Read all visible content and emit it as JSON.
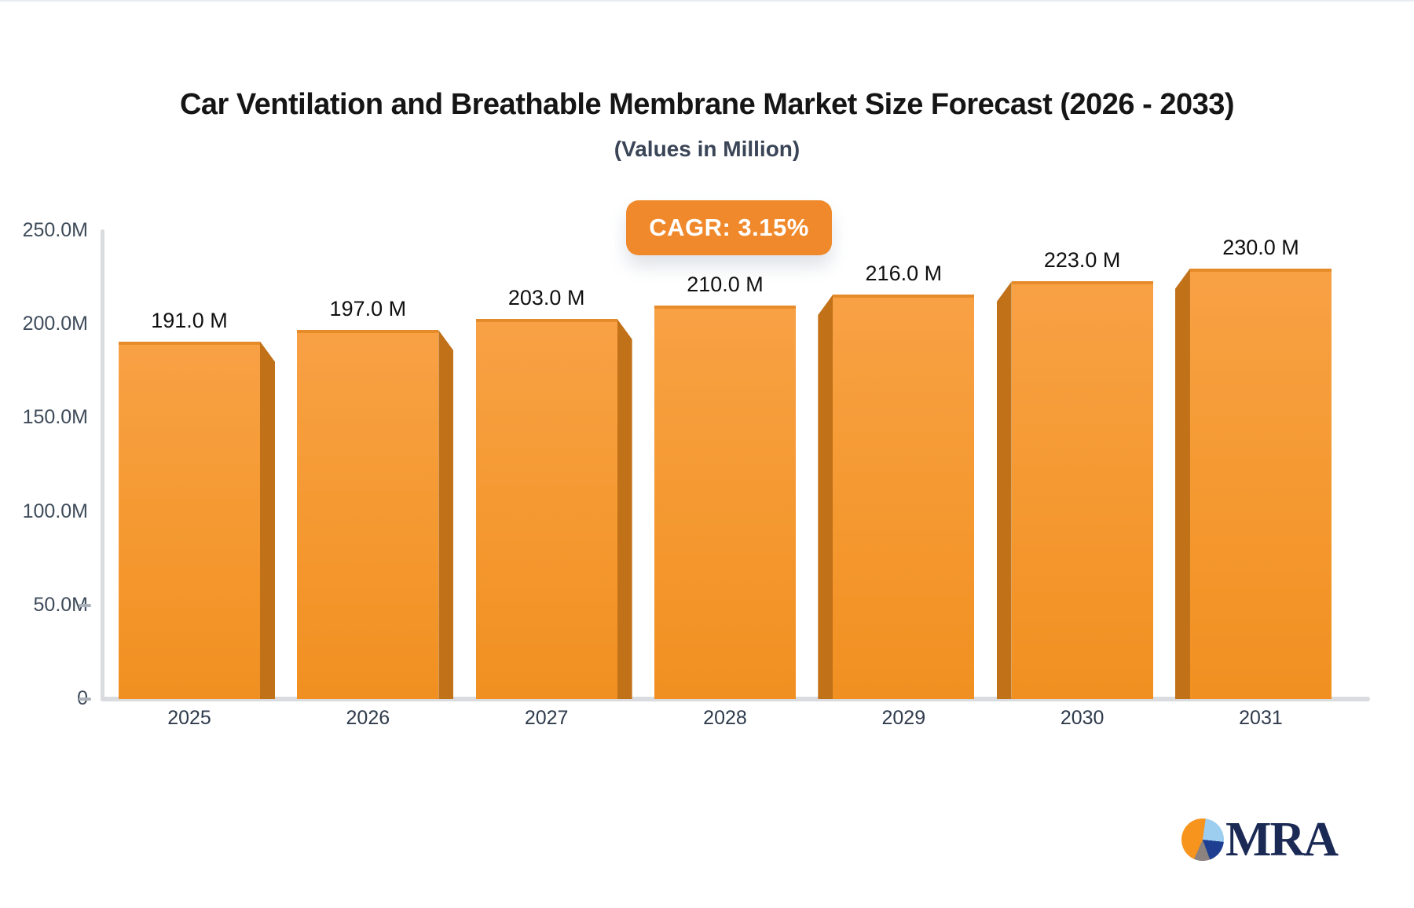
{
  "header": {
    "title": "Car Ventilation and Breathable Membrane Market Size Forecast (2026 - 2033)",
    "subtitle": "(Values in Million)"
  },
  "badge": {
    "label": "CAGR: 3.15%"
  },
  "chart_data": {
    "type": "bar",
    "title": "Car Ventilation and Breathable Membrane Market Size Forecast (2026 - 2033)",
    "subtitle": "(Values in Million)",
    "cagr_percent": 3.15,
    "categories": [
      "2025",
      "2026",
      "2027",
      "2028",
      "2029",
      "2030",
      "2031"
    ],
    "values": [
      191,
      197,
      203,
      210,
      216,
      223,
      230
    ],
    "value_labels": [
      "191.0 M",
      "197.0 M",
      "203.0 M",
      "210.0 M",
      "216.0 M",
      "223.0 M",
      "230.0 M"
    ],
    "unit": "Million",
    "ylim": [
      0,
      250
    ],
    "y_ticks": [
      {
        "value": 250,
        "label": "250.0M",
        "dash": false
      },
      {
        "value": 200,
        "label": "200.0M",
        "dash": false
      },
      {
        "value": 150,
        "label": "150.0M",
        "dash": false
      },
      {
        "value": 100,
        "label": "100.0M",
        "dash": false
      },
      {
        "value": 50,
        "label": "50.0M",
        "dash": true
      },
      {
        "value": 0,
        "label": "0",
        "dash": true
      }
    ],
    "grid": false,
    "legend": "none"
  },
  "logo": {
    "text": "MRA",
    "icon": "pie-chart-icon"
  },
  "colors": {
    "bar_face_top": "#F8A145",
    "bar_face_bottom": "#F19021",
    "bar_side": "#C17118",
    "badge_bg": "#F0892B",
    "badge_text": "#FFFFFF",
    "axis_line": "#D9DBDF",
    "title_text": "#151515",
    "subtitle_text": "#3A4557",
    "tick_text": "#3E4B5A",
    "category_text": "#2F3B4C",
    "logo_navy": "#1B2A55",
    "logo_orange": "#F7941D",
    "logo_lightblue": "#9DCEF0",
    "logo_blue": "#1E3F91",
    "logo_gray": "#8C8280"
  }
}
